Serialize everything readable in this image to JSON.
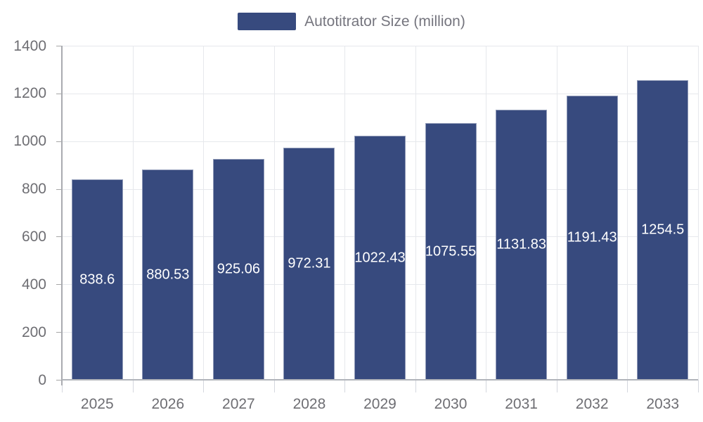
{
  "legend": {
    "label": "Autotitrator Size (million)"
  },
  "colors": {
    "background": "#FFFFFF",
    "bar": "#374A7E",
    "bar_label": "#FFFFFF",
    "axis_text": "#6E6E73",
    "legend_text": "#75757E",
    "gridline": "#E6E8EC",
    "axis_line": "#A9ABB0",
    "baseline": "#B1B4BA",
    "y_tick": "#A6A6A6",
    "x_tick": "#D4D7DE"
  },
  "chart_data": {
    "type": "bar",
    "title": "",
    "xlabel": "",
    "ylabel": "",
    "categories": [
      "2025",
      "2026",
      "2027",
      "2028",
      "2029",
      "2030",
      "2031",
      "2032",
      "2033"
    ],
    "series": [
      {
        "name": "Autotitrator Size (million)",
        "values": [
          838.6,
          880.53,
          925.06,
          972.31,
          1022.43,
          1075.55,
          1131.83,
          1191.43,
          1254.5
        ]
      }
    ],
    "value_labels": [
      "838.6",
      "880.53",
      "925.06",
      "972.31",
      "1022.43",
      "1075.55",
      "1131.83",
      "1191.43",
      "1254.5"
    ],
    "ylim": [
      0,
      1400
    ],
    "yticks": [
      0,
      200,
      400,
      600,
      800,
      1000,
      1200,
      1400
    ],
    "grid": true,
    "legend_position": "top-center",
    "bar_label_position": "inside-center"
  }
}
